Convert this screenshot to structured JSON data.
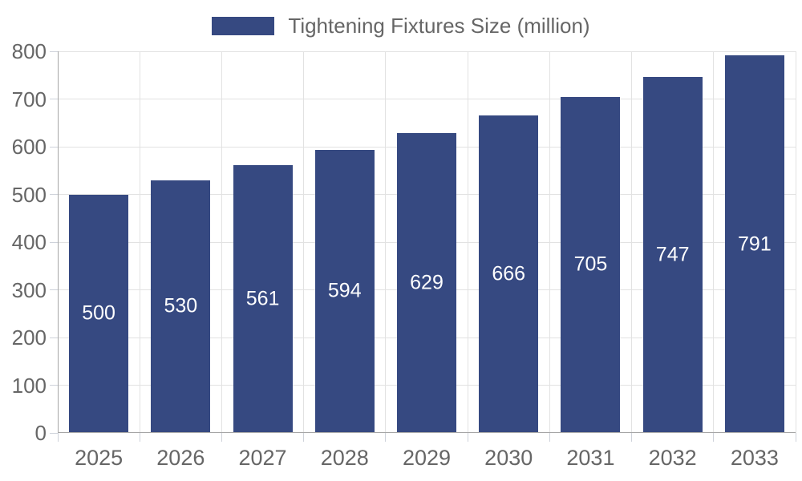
{
  "chart_data": {
    "type": "bar",
    "title": "",
    "legend": "Tightening Fixtures Size (million)",
    "legend_position": "top-center",
    "categories": [
      "2025",
      "2026",
      "2027",
      "2028",
      "2029",
      "2030",
      "2031",
      "2032",
      "2033"
    ],
    "values": [
      500,
      530,
      561,
      594,
      629,
      666,
      705,
      747,
      791
    ],
    "xlabel": "",
    "ylabel": "",
    "ylim": [
      0,
      800
    ],
    "ytick_step": 100,
    "grid": true,
    "colors": {
      "bar": "#364981",
      "axis_line": "#a6a6a6",
      "gridline": "#e2e2e2",
      "tick": "#ced2da",
      "axis_label": "#666666",
      "value_label": "#ffffff",
      "legend_text": "#666666"
    }
  }
}
